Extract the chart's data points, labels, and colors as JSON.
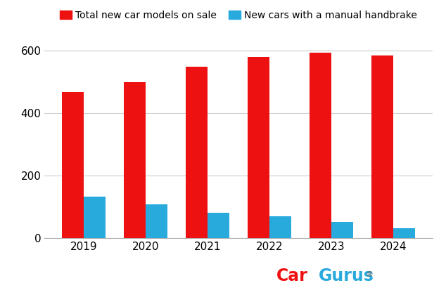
{
  "years": [
    "2019",
    "2020",
    "2021",
    "2022",
    "2023",
    "2024"
  ],
  "total_cars": [
    466,
    497,
    547,
    578,
    593,
    583
  ],
  "manual_handbrake": [
    132,
    108,
    80,
    68,
    52,
    30
  ],
  "bar_color_total": "#ee1111",
  "bar_color_manual": "#29aadd",
  "background_color": "#ffffff",
  "legend_label_total": "Total new car models on sale",
  "legend_label_manual": "New cars with a manual handbrake",
  "ylim": [
    0,
    640
  ],
  "yticks": [
    0,
    200,
    400,
    600
  ],
  "bar_width": 0.35,
  "grid_color": "#cccccc",
  "tick_fontsize": 11,
  "legend_fontsize": 10,
  "logo_car_color": "#ee1111",
  "logo_gurus_color": "#29aadd"
}
